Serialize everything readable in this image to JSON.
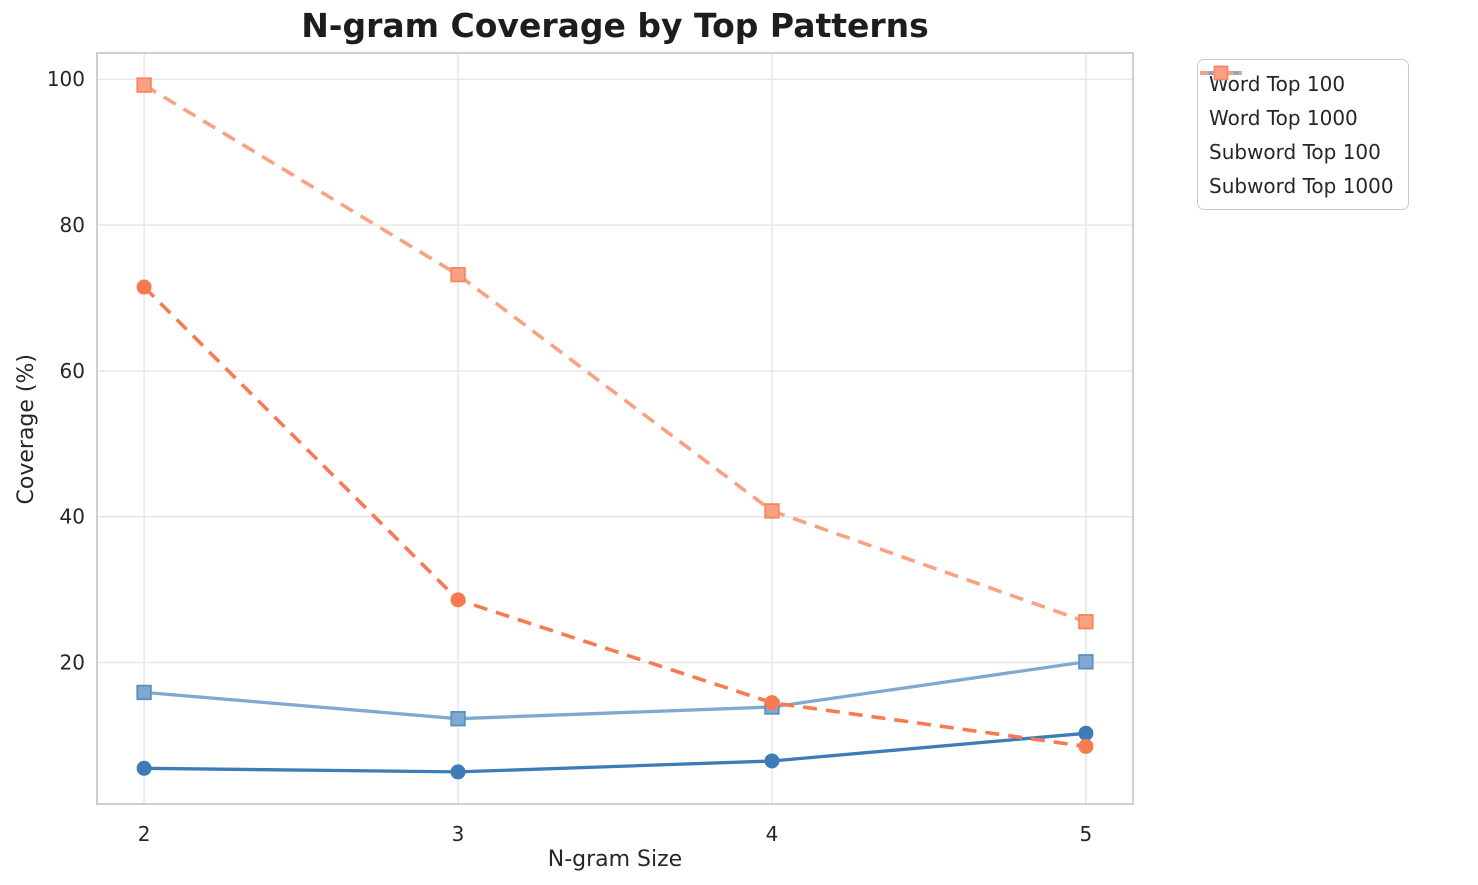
{
  "chart_data": {
    "type": "line",
    "title": "N-gram Coverage by Top Patterns",
    "xlabel": "N-gram Size",
    "ylabel": "Coverage (%)",
    "x": [
      2,
      3,
      4,
      5
    ],
    "x_tick_labels": [
      "2",
      "3",
      "4",
      "5"
    ],
    "y_ticks": [
      20,
      40,
      60,
      80,
      100
    ],
    "y_tick_labels": [
      "20",
      "40",
      "60",
      "80",
      "100"
    ],
    "xlim": [
      1.85,
      5.15
    ],
    "ylim": [
      0.6,
      103.6
    ],
    "grid": true,
    "legend_position": "outside-upper-right",
    "series": [
      {
        "name": "Word Top 100",
        "values": [
          5.5,
          5.0,
          6.5,
          10.3
        ],
        "color": "#3E7CB8",
        "marker": "circle",
        "line_style": "solid",
        "edge_color": "#3E7CB8"
      },
      {
        "name": "Word Top 1000",
        "values": [
          15.9,
          12.3,
          13.9,
          20.1
        ],
        "color": "#7FA9D1",
        "marker": "square",
        "line_style": "solid",
        "edge_color": "#5E90BE"
      },
      {
        "name": "Subword Top 100",
        "values": [
          71.5,
          28.6,
          14.5,
          8.5
        ],
        "color": "#F87A51",
        "marker": "circle",
        "line_style": "dashed",
        "edge_color": "#F87A51"
      },
      {
        "name": "Subword Top 1000",
        "values": [
          99.2,
          73.2,
          40.8,
          25.6
        ],
        "color": "#FAA184",
        "marker": "square",
        "line_style": "dashed",
        "edge_color": "#F8865F"
      }
    ],
    "colors": {
      "grid_line": "#E7E7E7",
      "spine": "#CFCFCF",
      "tick_text": "#262626",
      "title_text": "#1D1D1D",
      "background": "#FFFFFF",
      "legend_border": "#CBCBCB"
    }
  }
}
